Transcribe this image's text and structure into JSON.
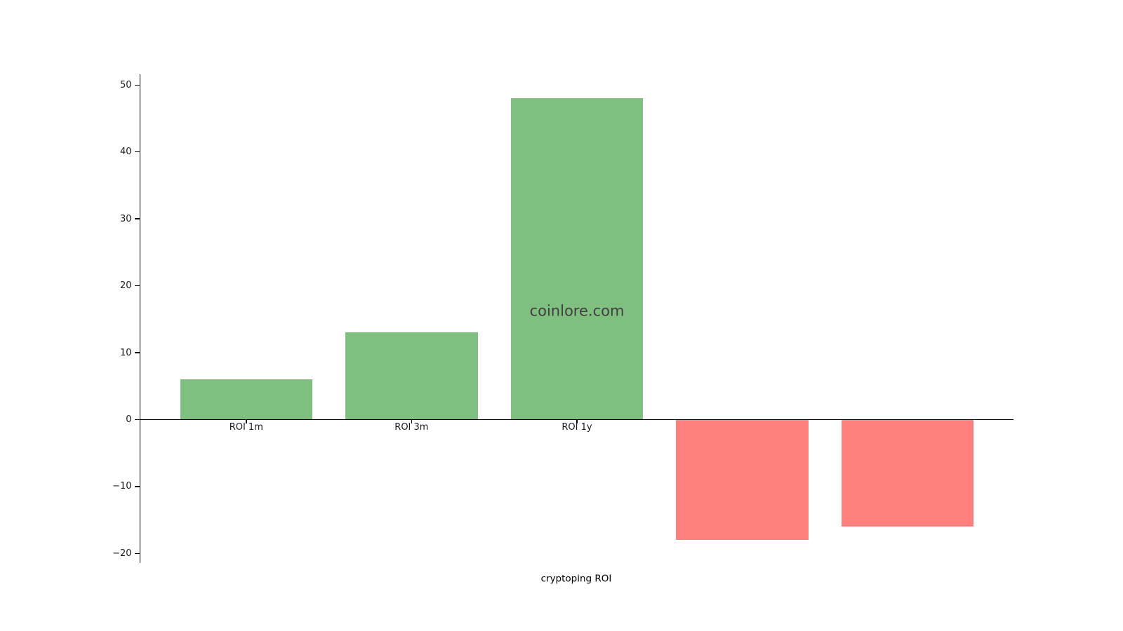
{
  "chart_data": {
    "type": "bar",
    "title": "",
    "xlabel": "cryptoping ROI",
    "ylabel": "",
    "categories": [
      "ROI 1m",
      "ROI 3m",
      "ROI 1y",
      "",
      ""
    ],
    "values": [
      6,
      13,
      48,
      -18,
      -16
    ],
    "positive_color": "#7fbf7f",
    "negative_color": "#ff7f7f",
    "yticks": [
      50,
      40,
      30,
      20,
      10,
      0,
      -10,
      -20
    ],
    "ylim": [
      -21.4,
      51.6
    ],
    "xlim": [
      -0.64,
      4.64
    ],
    "bar_width": 0.8,
    "grid": false,
    "legend_position": "none"
  },
  "watermark": {
    "text": "coinlore.com",
    "color": "#404040"
  },
  "axis": {
    "line_color": "#000000",
    "tick_label_color": "#1a1a1a"
  }
}
